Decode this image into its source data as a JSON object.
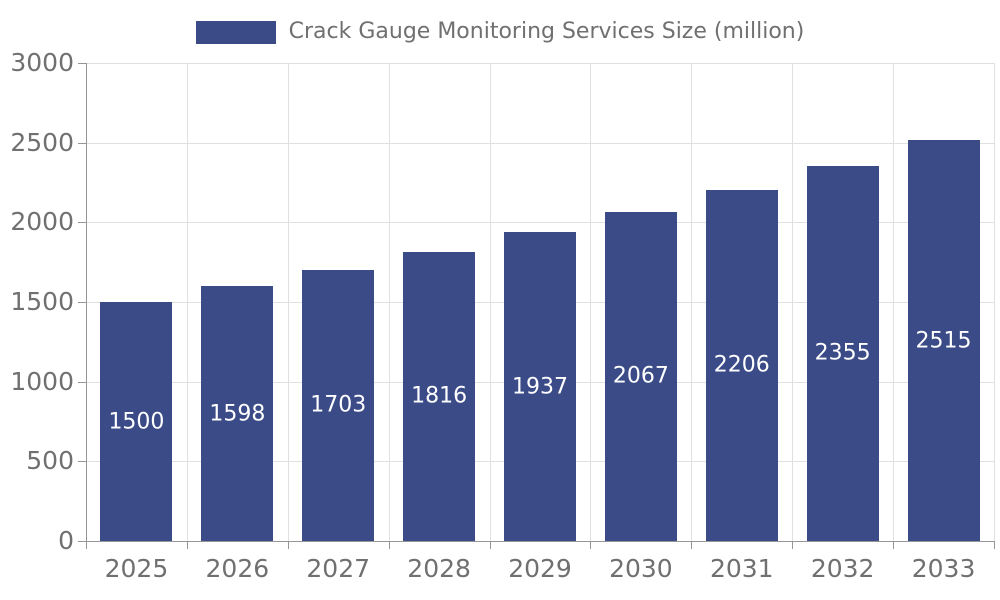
{
  "legend": {
    "position": "top-center"
  },
  "chart_data": {
    "type": "bar",
    "title": "",
    "categories": [
      "2025",
      "2026",
      "2027",
      "2028",
      "2029",
      "2030",
      "2031",
      "2032",
      "2033"
    ],
    "series": [
      {
        "name": "Crack Gauge Monitoring Services Size (million)",
        "values": [
          1500,
          1598,
          1703,
          1816,
          1937,
          2067,
          2206,
          2355,
          2515
        ]
      }
    ],
    "xlabel": "",
    "ylabel": "",
    "ylim": [
      0,
      3000
    ],
    "yticks": [
      0,
      500,
      1000,
      1500,
      2000,
      2500,
      3000
    ],
    "grid": true,
    "legend_position": "top-center",
    "value_label_position": "inside-center",
    "colors": {
      "bar": "#3a4b88",
      "bar_value_label": "#ffffff",
      "grid": "#e0e0e0",
      "axis": "#969696",
      "tick_label": "#707070",
      "legend_text": "#707070"
    }
  }
}
